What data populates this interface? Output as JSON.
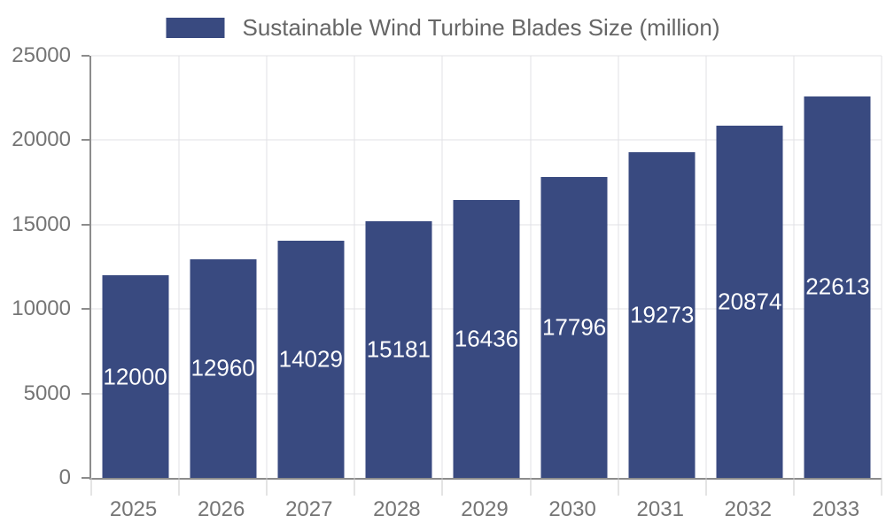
{
  "legend": {
    "label": "Sustainable Wind Turbine Blades Size (million)"
  },
  "chart_data": {
    "type": "bar",
    "title": "Sustainable Wind Turbine Blades Size (million)",
    "categories": [
      "2025",
      "2026",
      "2027",
      "2028",
      "2029",
      "2030",
      "2031",
      "2032",
      "2033"
    ],
    "series": [
      {
        "name": "Sustainable Wind Turbine Blades Size (million)",
        "values": [
          12000,
          12960,
          14029,
          15181,
          16436,
          17796,
          19273,
          20874,
          22613
        ]
      }
    ],
    "xlabel": "",
    "ylabel": "",
    "ylim": [
      0,
      25000
    ],
    "yticks": [
      0,
      5000,
      10000,
      15000,
      20000,
      25000
    ],
    "grid": true,
    "legend_position": "top-center",
    "value_labels": "inside-middle-white"
  },
  "colors": {
    "background": "#ffffff",
    "bar": "#394a80",
    "grid": "#e0e0e6",
    "axis": "#8c8c8c",
    "x_tick": "#c9c9c9",
    "tick_label": "#757575",
    "legend_text": "#666666",
    "value_label": "#ffffff"
  }
}
